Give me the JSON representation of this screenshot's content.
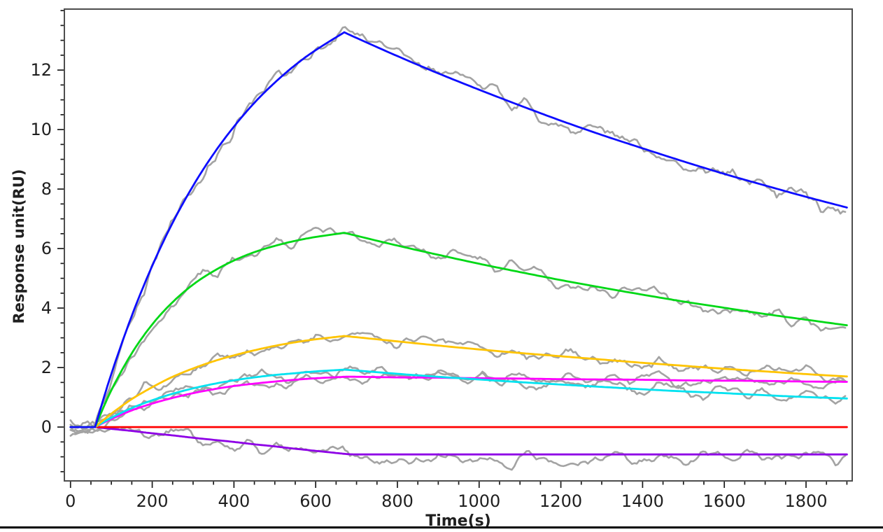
{
  "figure": {
    "background": "#ffffff",
    "bottom_rule_color": "#000000",
    "frame_color": "#4d4d4d",
    "tick_color": "#1a1a1a",
    "text_color": "#1f1f1f"
  },
  "chart_data": {
    "type": "line",
    "title": "",
    "xlabel": "Time(s)",
    "ylabel": "Response unit(RU)",
    "xlim": [
      -15,
      1913
    ],
    "ylim": [
      -1.81,
      14.05
    ],
    "x_major_ticks": [
      0,
      200,
      400,
      600,
      800,
      1000,
      1200,
      1400,
      1600,
      1800
    ],
    "x_minor_step": 50,
    "y_major_ticks": [
      0,
      2,
      4,
      6,
      8,
      10,
      12
    ],
    "y_minor_step": 0.5,
    "grid": false,
    "legend": "none",
    "phases": {
      "baseline_end_s": 60,
      "association_end_s": 670,
      "trace_end_s": 1900
    },
    "raw_trace_color": "#a3a3a3",
    "t": [
      0,
      60,
      100,
      150,
      200,
      250,
      300,
      350,
      400,
      450,
      500,
      550,
      600,
      670,
      700,
      800,
      900,
      1000,
      1100,
      1200,
      1300,
      1400,
      1500,
      1600,
      1700,
      1800,
      1900
    ],
    "series": [
      {
        "name": "blue-fit",
        "color": "#0d0dff",
        "raw_trace": true,
        "raw_noise_amp": 0.36,
        "values": [
          0,
          0,
          1.79,
          3.74,
          5.42,
          6.87,
          8.11,
          9.18,
          10.1,
          10.9,
          11.58,
          12.17,
          12.67,
          13.27,
          13.08,
          12.47,
          11.89,
          11.34,
          10.81,
          10.3,
          9.82,
          9.37,
          8.93,
          8.51,
          8.12,
          7.74,
          7.38
        ]
      },
      {
        "name": "green-fit",
        "color": "#00d816",
        "raw_trace": true,
        "raw_noise_amp": 0.3,
        "values": [
          0,
          0,
          1.24,
          2.48,
          3.45,
          4.2,
          4.79,
          5.24,
          5.6,
          5.88,
          6.09,
          6.26,
          6.39,
          6.53,
          6.43,
          6.1,
          5.79,
          5.49,
          5.21,
          4.94,
          4.69,
          4.45,
          4.22,
          4.01,
          3.8,
          3.61,
          3.42
        ]
      },
      {
        "name": "gold-fit",
        "color": "#ffc400",
        "raw_trace": true,
        "raw_noise_amp": 0.3,
        "values": [
          0,
          0,
          0.45,
          0.94,
          1.34,
          1.69,
          1.97,
          2.21,
          2.41,
          2.58,
          2.73,
          2.85,
          2.95,
          3.06,
          3.02,
          2.88,
          2.74,
          2.61,
          2.49,
          2.38,
          2.27,
          2.16,
          2.06,
          1.96,
          1.87,
          1.78,
          1.7
        ]
      },
      {
        "name": "cyan-fit",
        "color": "#00e2f0",
        "raw_trace": true,
        "raw_noise_amp": 0.28,
        "values": [
          0,
          0,
          0.31,
          0.64,
          0.9,
          1.12,
          1.3,
          1.45,
          1.57,
          1.67,
          1.75,
          1.81,
          1.87,
          1.93,
          1.9,
          1.79,
          1.69,
          1.6,
          1.51,
          1.43,
          1.35,
          1.27,
          1.2,
          1.14,
          1.07,
          1.01,
          0.96
        ]
      },
      {
        "name": "magenta-fit",
        "color": "#ff00ff",
        "raw_trace": true,
        "raw_noise_amp": 0.26,
        "values": [
          0,
          0,
          0.27,
          0.56,
          0.79,
          0.98,
          1.14,
          1.27,
          1.38,
          1.46,
          1.53,
          1.59,
          1.64,
          1.69,
          1.69,
          1.67,
          1.66,
          1.64,
          1.63,
          1.61,
          1.6,
          1.59,
          1.57,
          1.56,
          1.55,
          1.53,
          1.52
        ]
      },
      {
        "name": "red-zero-baseline",
        "color": "#ff0000",
        "raw_trace": false,
        "raw_noise_amp": 0,
        "values": [
          0,
          0,
          0,
          0,
          0,
          0,
          0,
          0,
          0,
          0,
          0,
          0,
          0,
          0,
          0,
          0,
          0,
          0,
          0,
          0,
          0,
          0,
          0,
          0,
          0,
          0,
          0
        ]
      },
      {
        "name": "violet-negative-drift",
        "color": "#8e00e6",
        "raw_trace": true,
        "raw_noise_amp": 0.3,
        "raw_offset_end": -0.16,
        "values": [
          0,
          0,
          -0.06,
          -0.13,
          -0.21,
          -0.28,
          -0.36,
          -0.43,
          -0.5,
          -0.58,
          -0.65,
          -0.73,
          -0.8,
          -0.9,
          -0.92,
          -0.92,
          -0.92,
          -0.92,
          -0.92,
          -0.92,
          -0.92,
          -0.92,
          -0.92,
          -0.92,
          -0.92,
          -0.92,
          -0.92
        ]
      }
    ]
  }
}
